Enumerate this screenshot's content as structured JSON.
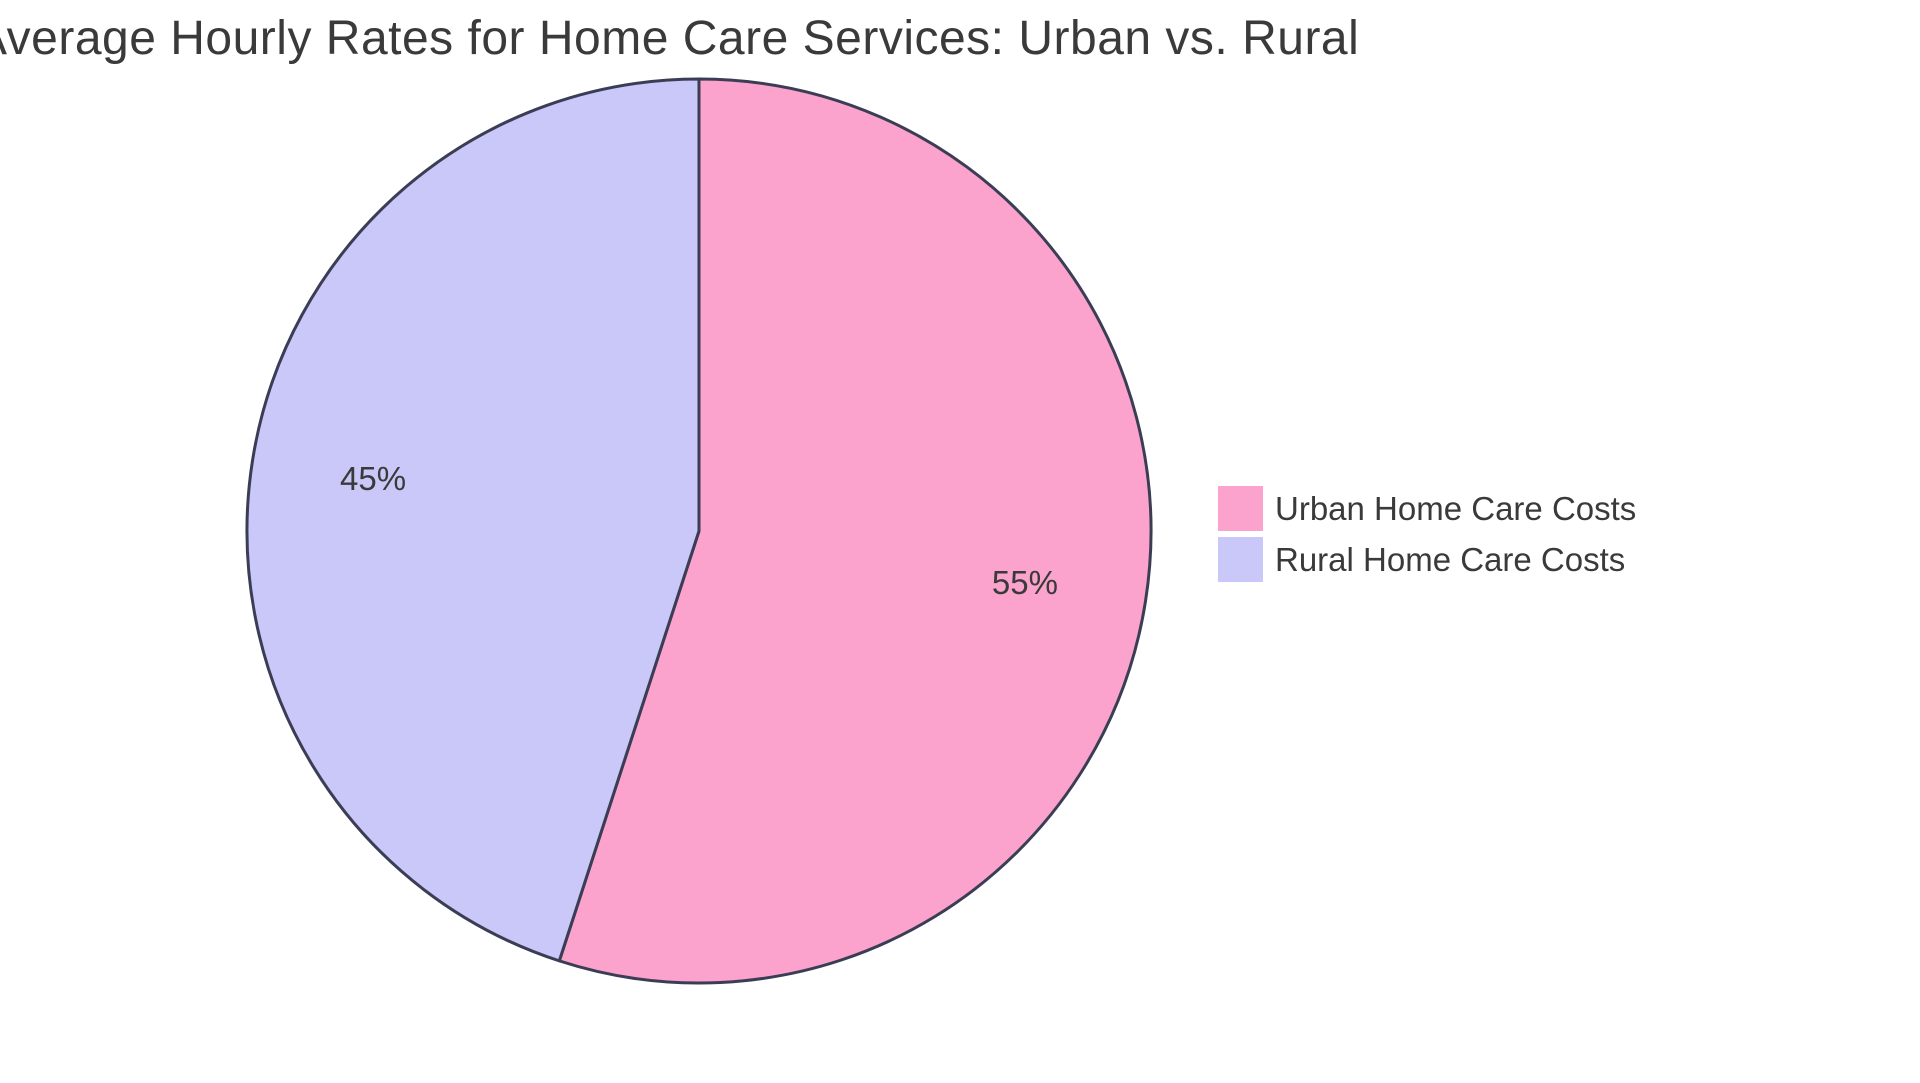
{
  "chart_data": {
    "type": "pie",
    "title": "Average Hourly Rates for Home Care Services: Urban vs. Rural",
    "labels": [
      "Urban Home Care Costs",
      "Rural Home Care Costs"
    ],
    "values": [
      55,
      45
    ],
    "pct_labels": [
      "55%",
      "45%"
    ],
    "colors": [
      "#FBA3CD",
      "#C9C8F8"
    ],
    "slice_border_color": "#3B3D55",
    "text_color": "#3A3A3A",
    "background": "#FFFFFF",
    "start_angle": "top",
    "direction": "clockwise",
    "legend_position": "right",
    "labels_inside": true
  }
}
